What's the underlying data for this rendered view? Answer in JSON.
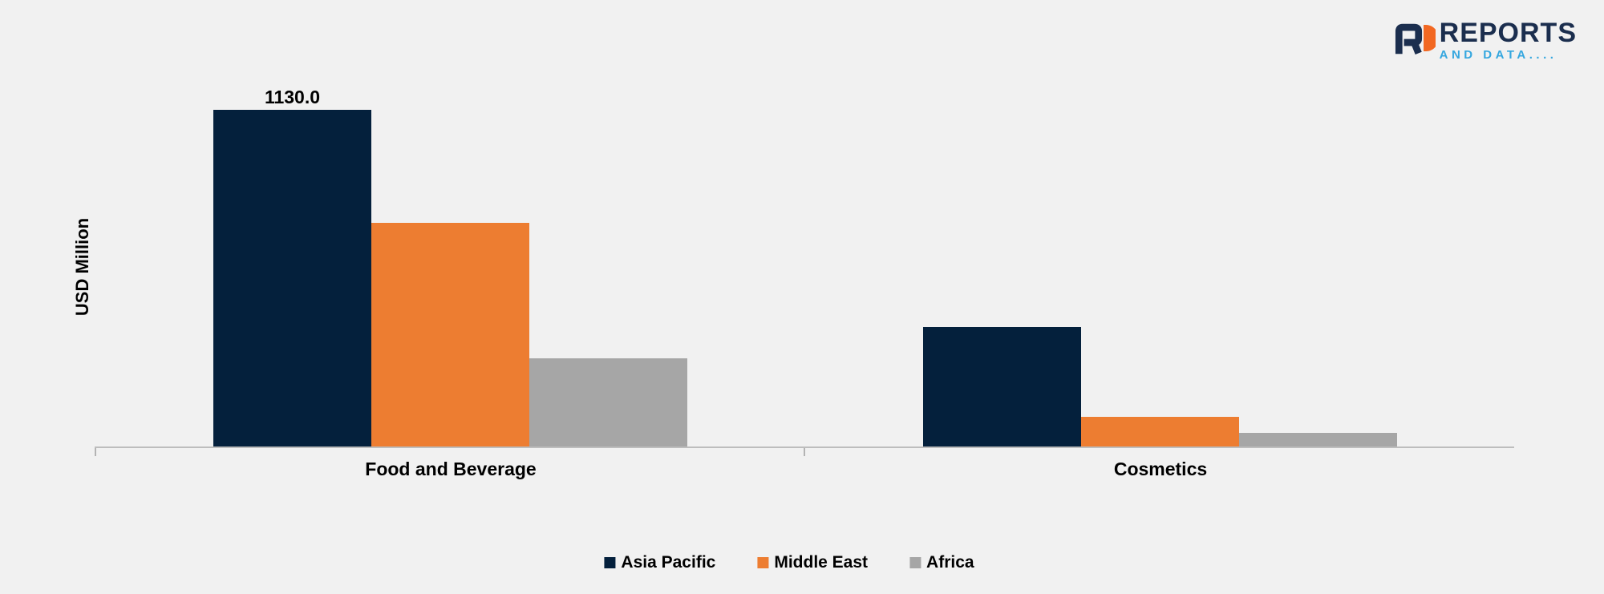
{
  "background_color": "#F1F1F1",
  "logo": {
    "brand_top": "REPORTS",
    "brand_bottom": "AND DATA....",
    "navy_color": "#1B2E4E",
    "blue_color": "#35A7DF",
    "orange_color": "#F26822"
  },
  "chart_data": {
    "type": "bar",
    "categories": [
      "Food and Beverage",
      "Cosmetics"
    ],
    "series": [
      {
        "name": "Asia Pacific",
        "color": "#04203C",
        "values": [
          1130.0,
          400
        ]
      },
      {
        "name": "Middle East",
        "color": "#ED7D31",
        "values": [
          750,
          100
        ]
      },
      {
        "name": "Africa",
        "color": "#A6A6A6",
        "values": [
          295,
          45
        ]
      }
    ],
    "data_labels": [
      {
        "series": 0,
        "category": 0,
        "text": "1130.0"
      }
    ],
    "title": "",
    "xlabel": "",
    "ylabel": "USD Million",
    "ylim": [
      0,
      1200
    ],
    "grid": false,
    "legend_position": "bottom",
    "axis_color": "#BDBDBD"
  }
}
